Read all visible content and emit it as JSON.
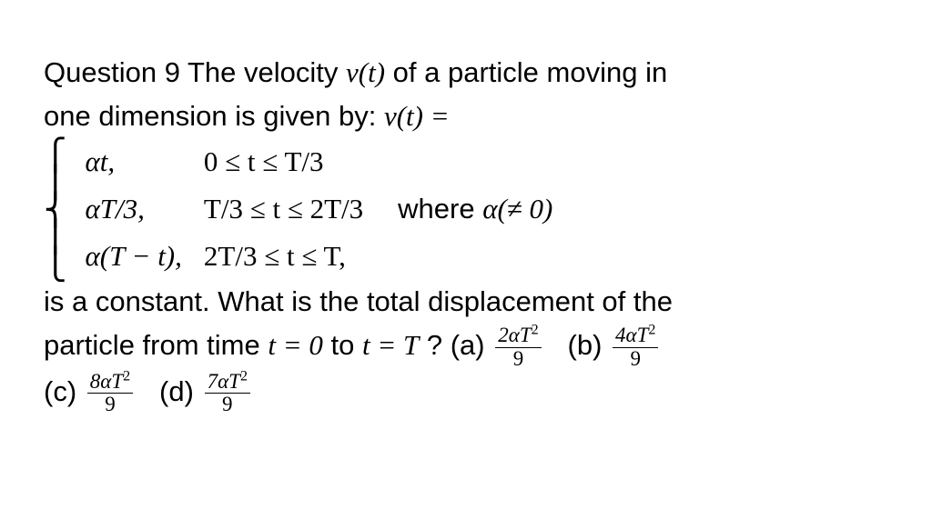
{
  "question": {
    "label": "Question 9",
    "intro_part1": "The velocity ",
    "intro_vt": "v(t)",
    "intro_part2": " of a particle moving in",
    "line2_part1": "one dimension is given by: ",
    "line2_eq": "v(t) ="
  },
  "cases": {
    "rows": [
      {
        "expr": "αt,",
        "cond": "0 ≤ t ≤ T/3"
      },
      {
        "expr": "αT/3,",
        "cond": "T/3 ≤ t ≤ 2T/3"
      },
      {
        "expr": "α(T − t),",
        "cond": "2T/3 ≤ t ≤ T,"
      }
    ],
    "where_part1": "where ",
    "alpha_cond": "α(≠ 0)"
  },
  "tail": {
    "line1": "is a constant. What is the total displacement of the",
    "line2_part1": "particle from time ",
    "t0": "t = 0",
    "to_word": " to ",
    "tT": "t = T",
    "qmark": " ? "
  },
  "options": {
    "a": {
      "label": "(a)",
      "num": "2αT",
      "den": "9"
    },
    "b": {
      "label": "(b)",
      "num": "4αT",
      "den": "9"
    },
    "c": {
      "label": "(c)",
      "num": "8αT",
      "den": "9"
    },
    "d": {
      "label": "(d)",
      "num": "7αT",
      "den": "9"
    }
  },
  "exp": "2"
}
